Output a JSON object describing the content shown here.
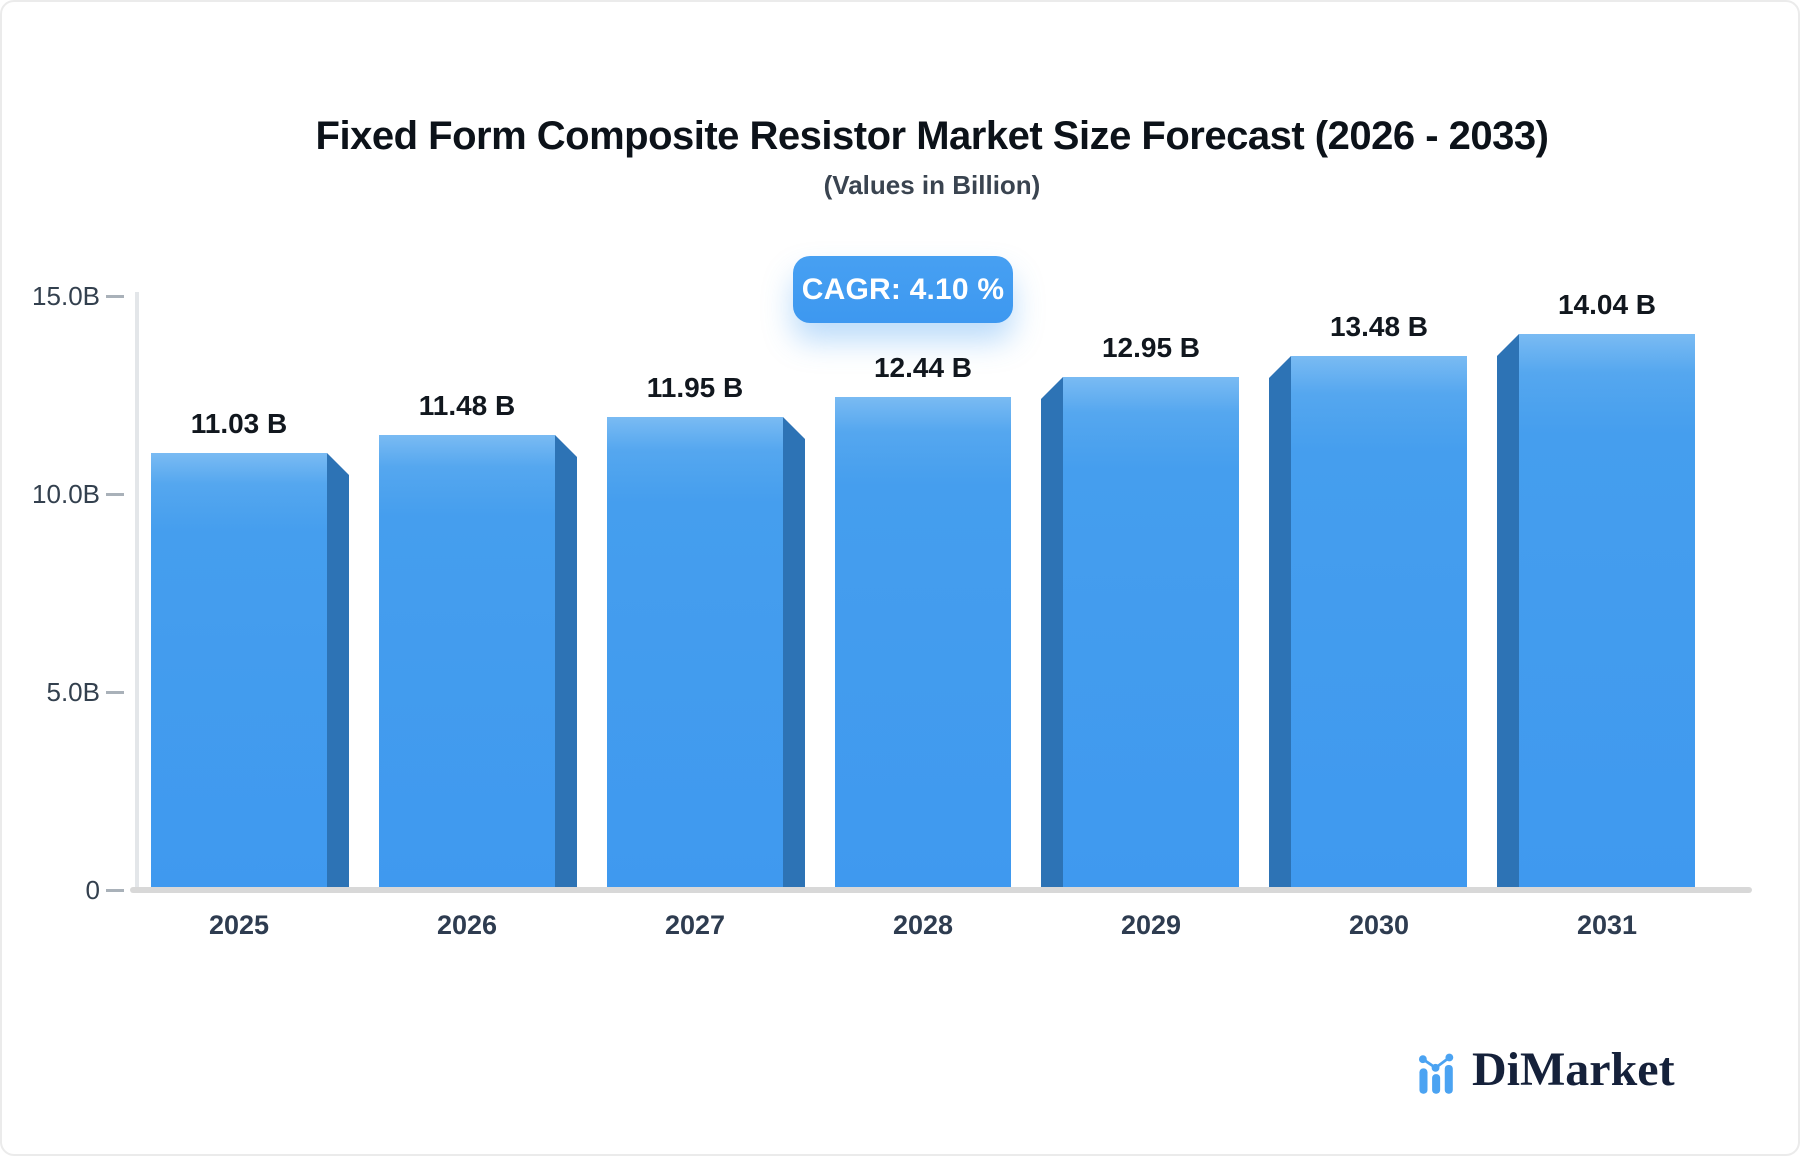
{
  "header": {
    "title": "Fixed Form Composite Resistor Market Size Forecast (2026 - 2033)",
    "subtitle": "(Values in Billion)"
  },
  "badge": {
    "label": "CAGR: 4.10 %"
  },
  "chart_data": {
    "type": "bar",
    "title": "Fixed Form Composite Resistor Market Size Forecast (2026 - 2033)",
    "subtitle": "(Values in Billion)",
    "categories": [
      "2025",
      "2026",
      "2027",
      "2028",
      "2029",
      "2030",
      "2031"
    ],
    "values": [
      11.03,
      11.48,
      11.95,
      12.44,
      12.95,
      13.48,
      14.04
    ],
    "value_labels": [
      "11.03 B",
      "11.48 B",
      "11.95 B",
      "12.44 B",
      "12.95 B",
      "13.48 B",
      "14.04 B"
    ],
    "xlabel": "",
    "ylabel": "",
    "ylim": [
      0,
      15
    ],
    "yticks": [
      {
        "label": "15.0B",
        "value": 15
      },
      {
        "label": "10.0B",
        "value": 10
      },
      {
        "label": "5.0B",
        "value": 5
      },
      {
        "label": "0",
        "value": 0
      }
    ],
    "grid": "off",
    "legend": "none",
    "style": "3d-extruded-bars",
    "colors": {
      "bar_front": "#3F99EF",
      "bar_front_highlight": "#7ABBF3",
      "bar_side": "#2D73B5",
      "axis_line": "#D8D8D8",
      "tick_text": "#33404E",
      "value_text": "#11171E"
    }
  },
  "logo": {
    "text": "DiMarket",
    "icon": "mini-bar-chart-icon",
    "text_color": "#15213A",
    "icon_color": "#4BA3F2"
  }
}
